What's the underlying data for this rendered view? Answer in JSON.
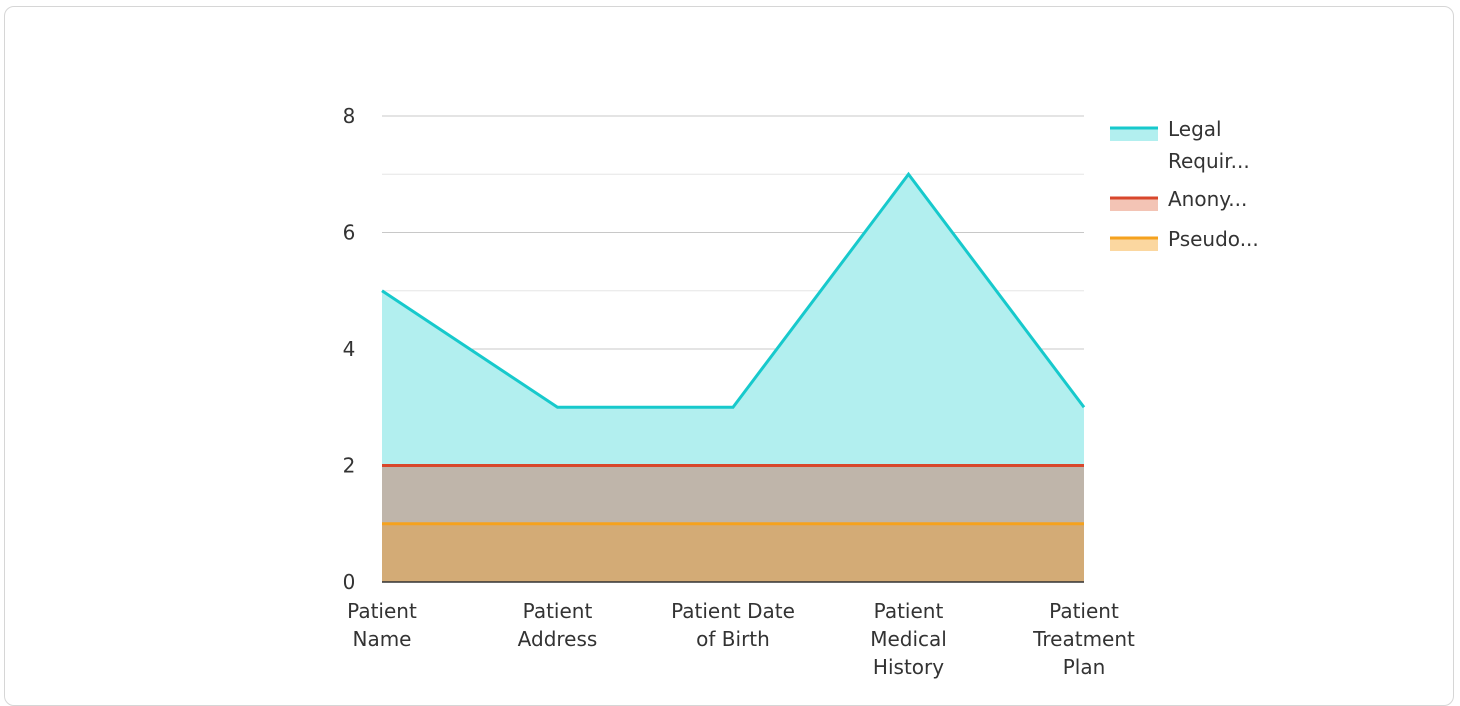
{
  "chart_data": {
    "type": "area",
    "categories": [
      [
        "Patient",
        "Name"
      ],
      [
        "Patient",
        "Address"
      ],
      [
        "Patient Date",
        "of Birth"
      ],
      [
        "Patient",
        "Medical",
        "History"
      ],
      [
        "Patient",
        "Treatment",
        "Plan"
      ]
    ],
    "series": [
      {
        "name": "Legal Requir...",
        "name_lines": [
          "Legal",
          "Requir..."
        ],
        "values": [
          5,
          3,
          3,
          7,
          3
        ],
        "color": "#17c9cc",
        "fill": "#b2efef"
      },
      {
        "name": "Anony...",
        "name_lines": [
          "Anony..."
        ],
        "values": [
          2,
          2,
          2,
          2,
          2
        ],
        "color": "#d8472c",
        "fill": "#f3c4b5"
      },
      {
        "name": "Pseudo...",
        "name_lines": [
          "Pseudo..."
        ],
        "values": [
          1,
          1,
          1,
          1,
          1
        ],
        "color": "#f5a21e",
        "fill": "#fbd7a0"
      }
    ],
    "overlap_fill": "#bfb5aa",
    "bottom_fill": "#d3ab76",
    "ylim": [
      0,
      8
    ],
    "yticks": [
      0,
      2,
      4,
      6,
      8
    ],
    "grid": true,
    "legend_position": "right"
  }
}
